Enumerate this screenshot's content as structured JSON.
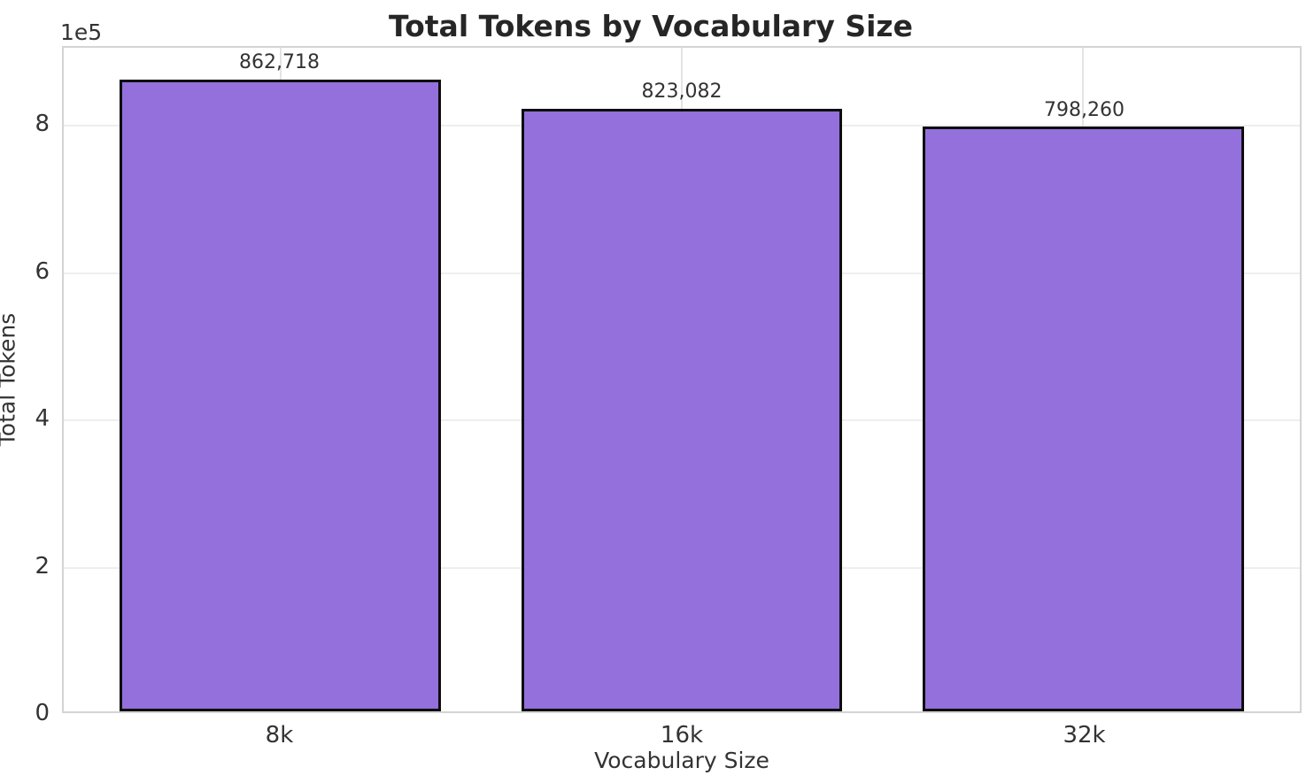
{
  "chart_data": {
    "type": "bar",
    "title": "Total Tokens by Vocabulary Size",
    "xlabel": "Vocabulary Size",
    "ylabel": "Total Tokens",
    "categories": [
      "8k",
      "16k",
      "32k"
    ],
    "values": [
      862718,
      823082,
      798260
    ],
    "value_labels": [
      "862,718",
      "823,082",
      "798,260"
    ],
    "y_ticks": [
      0,
      2,
      4,
      6,
      8
    ],
    "y_tick_scale": 100000,
    "y_offset_label": "1e5",
    "ylim": [
      0,
      905854
    ],
    "xlim_units": [
      -0.54,
      2.54
    ],
    "bar_width_units": 0.8,
    "grid": true,
    "legend": null,
    "bar_color": "#9370DB",
    "bar_edge_color": "#0d0d0d",
    "grid_color": "#eeeeee",
    "spine_color": "#d4d4d4",
    "title_color": "#262626",
    "text_color": "#333333"
  }
}
